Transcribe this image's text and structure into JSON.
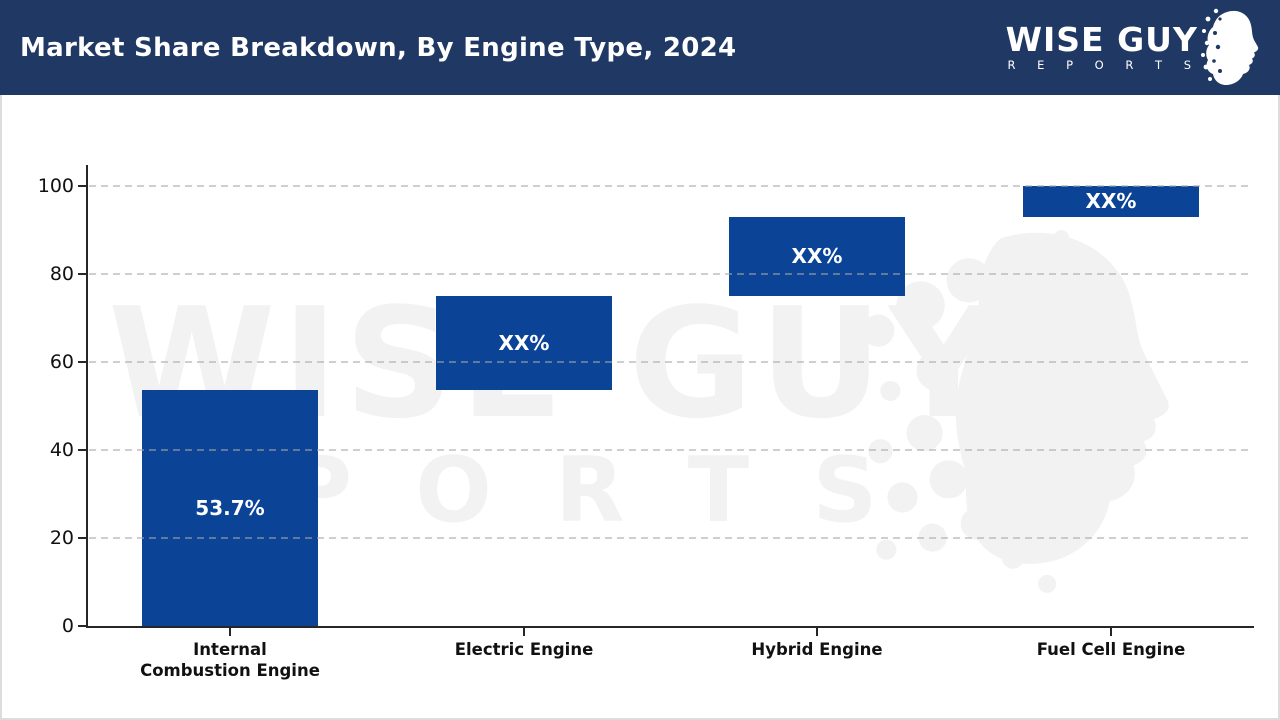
{
  "header": {
    "title": "Market Share Breakdown, By Engine Type, 2024",
    "logo": {
      "line1": "WISE GUY",
      "line2": "R E P O R T S"
    }
  },
  "watermark": {
    "line1": "WISE GUY",
    "line2": "P O R T S"
  },
  "colors": {
    "header_bg": "#1F3864",
    "bar": "#0B4397",
    "axis": "#262626",
    "grid_dash": "#c9c9c9",
    "tick_label": "#111111",
    "bar_label": "#ffffff",
    "watermark": "#f2f2f2"
  },
  "chart_data": {
    "type": "bar",
    "subtype": "waterfall",
    "title": "Market Share Breakdown, By Engine Type, 2024",
    "categories": [
      "Internal\nCombustion Engine",
      "Electric Engine",
      "Hybrid Engine",
      "Fuel Cell Engine"
    ],
    "segments": [
      {
        "category": "Internal Combustion Engine",
        "start": 0,
        "end": 53.7,
        "label": "53.7%"
      },
      {
        "category": "Electric Engine",
        "start": 53.7,
        "end": 75,
        "label": "XX%"
      },
      {
        "category": "Hybrid Engine",
        "start": 75,
        "end": 93,
        "label": "XX%"
      },
      {
        "category": "Fuel Cell Engine",
        "start": 93,
        "end": 100,
        "label": "XX%"
      }
    ],
    "yticks": [
      0,
      20,
      40,
      60,
      80,
      100
    ],
    "ylim": [
      0,
      105
    ],
    "xlabel": "",
    "ylabel": "",
    "grid": "horizontal-dashed",
    "legend": "none"
  }
}
